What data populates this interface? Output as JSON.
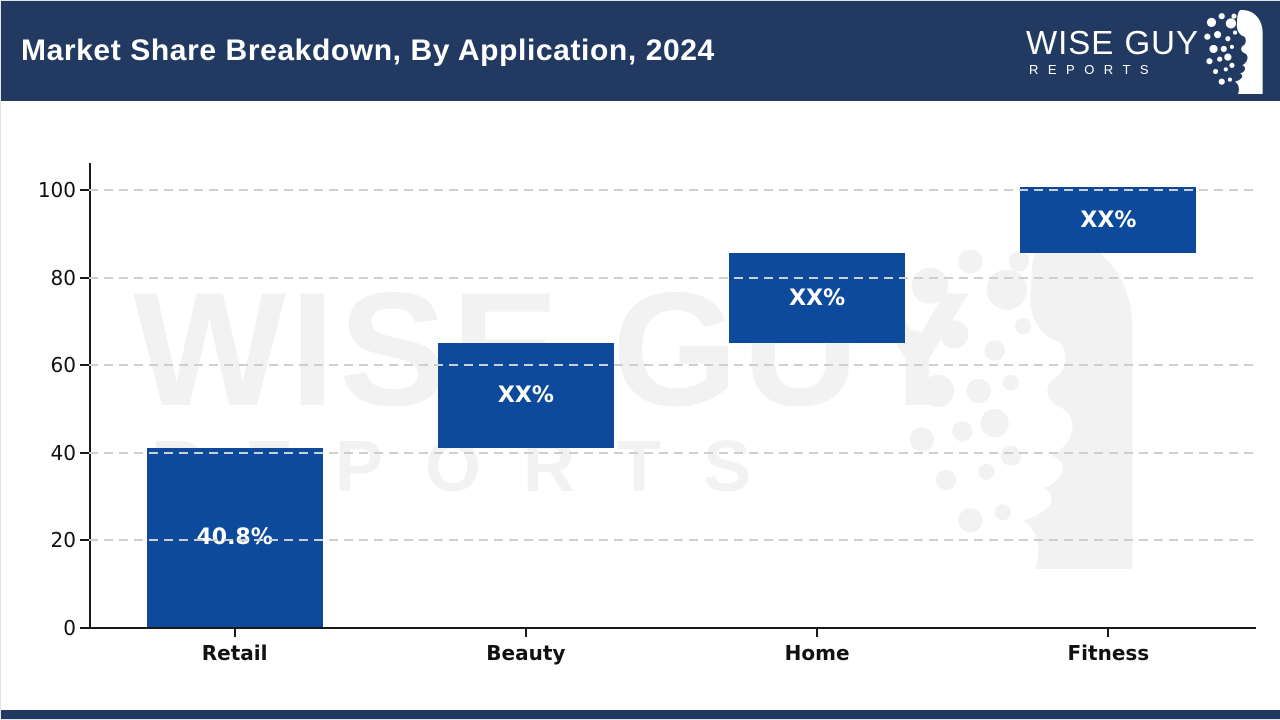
{
  "header": {
    "title": "Market Share Breakdown, By Application, 2024",
    "logo": {
      "line1": "WISE GUY",
      "line2": "REPORTS"
    }
  },
  "watermark": {
    "line1": "WISE GUY",
    "line2": "REPORTS"
  },
  "chart_data": {
    "type": "bar",
    "subtype": "floating-waterfall",
    "title": "Market Share Breakdown, By Application, 2024",
    "categories": [
      "Retail",
      "Beauty",
      "Home",
      "Fitness"
    ],
    "series": [
      {
        "name": "Market share (%)",
        "segments": [
          {
            "category": "Retail",
            "start": 0,
            "end": 40.8,
            "span": 40.8,
            "label": "40.8%"
          },
          {
            "category": "Beauty",
            "start": 40.8,
            "end": 64.8,
            "span": 24.0,
            "label": "XX%"
          },
          {
            "category": "Home",
            "start": 64.8,
            "end": 85.4,
            "span": 20.6,
            "label": "XX%"
          },
          {
            "category": "Fitness",
            "start": 85.4,
            "end": 100.4,
            "span": 15.0,
            "label": "XX%"
          }
        ]
      }
    ],
    "xlabel": "",
    "ylabel": "",
    "ylim": [
      0,
      105
    ],
    "yticks": [
      0,
      20,
      40,
      60,
      80,
      100
    ],
    "grid": "horizontal dashed, drawn over bars",
    "legend": "none",
    "bar_color": "#0d4a9c",
    "bar_label_color": "#ffffff"
  },
  "colors": {
    "header_bg": "#223a62",
    "footer_bg": "#223a62",
    "bar": "#0d4a9c",
    "grid": "#cfcfcf",
    "axis": "#1a1a1a",
    "watermark": "#f2f2f2"
  }
}
